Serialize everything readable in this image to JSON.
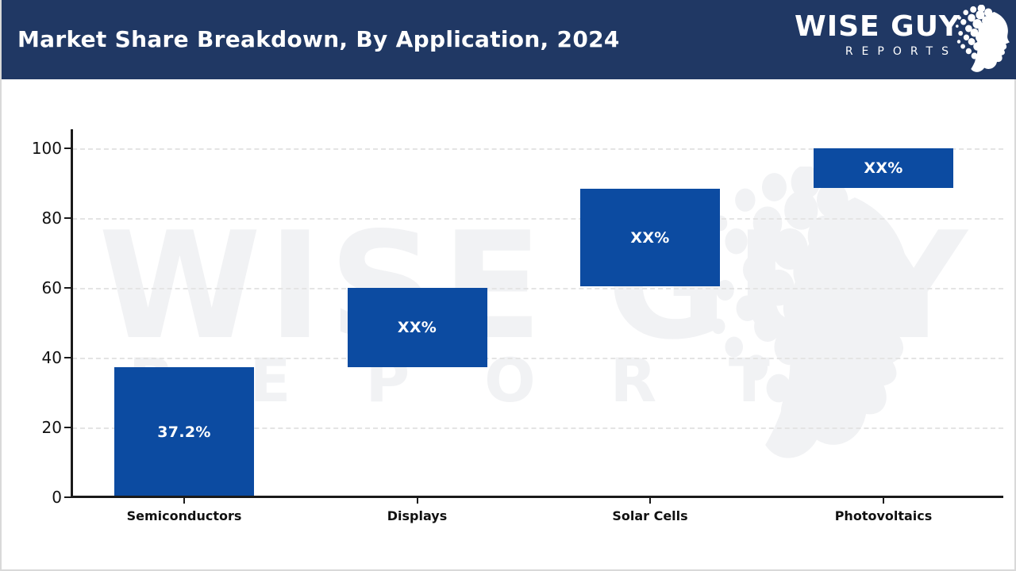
{
  "header": {
    "title": "Market Share Breakdown, By Application, 2024",
    "brand": {
      "name_top": "WISE GUY",
      "name_bottom": "REPORTS"
    }
  },
  "watermark": {
    "line1": "WISE GUY",
    "line2": "REPORTS"
  },
  "colors": {
    "header_bg": "#203864",
    "bar": "#0c4ba1",
    "bar_label": "#ffffff",
    "gridline": "#e4e4e4",
    "axis": "#1a1a1a",
    "watermark": "#f1f2f4"
  },
  "chart_data": {
    "type": "bar",
    "subtype": "waterfall",
    "title": "Market Share Breakdown, By Application, 2024",
    "categories": [
      "Semiconductors",
      "Displays",
      "Solar Cells",
      "Photovoltaics"
    ],
    "segments": [
      {
        "category": "Semiconductors",
        "start": 0,
        "end": 37.2,
        "label": "37.2%"
      },
      {
        "category": "Displays",
        "start": 37.2,
        "end": 60,
        "label": "XX%"
      },
      {
        "category": "Solar Cells",
        "start": 60.5,
        "end": 88.3,
        "label": "XX%"
      },
      {
        "category": "Photovoltaics",
        "start": 88.6,
        "end": 100,
        "label": "XX%"
      }
    ],
    "yticks": [
      0,
      20,
      40,
      60,
      80,
      100
    ],
    "ylim": [
      0,
      105
    ],
    "xlabel": "",
    "ylabel": "",
    "grid": "dashed-horizontal",
    "legend": "none"
  }
}
